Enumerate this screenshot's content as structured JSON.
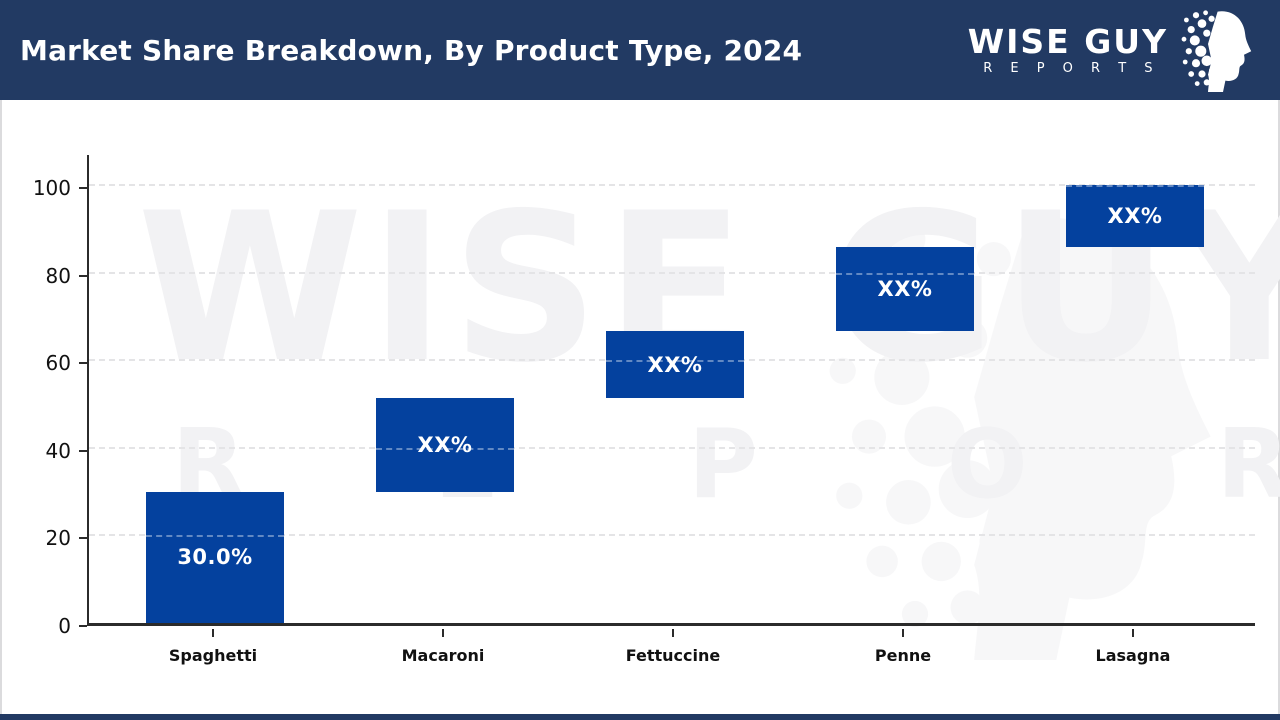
{
  "header": {
    "title": "Market Share Breakdown, By Product Type, 2024",
    "logo": {
      "line1": "WISE GUY",
      "line2": "R E P O R T S"
    }
  },
  "watermark": {
    "line1": "WISE GUY",
    "line2": "R E P O R T S"
  },
  "colors": {
    "header-bg": "#223A63",
    "footer-bg": "#223A63",
    "bar": "#04419E",
    "bar-label": "#FFFFFF",
    "grid": "#E4E4E6",
    "axis": "#2B2B2B",
    "tick-label": "#111111",
    "watermark": "#F2F2F4"
  },
  "chart_data": {
    "type": "bar",
    "subtype": "waterfall",
    "title": "Market Share Breakdown, By Product Type, 2024",
    "categories": [
      "Spaghetti",
      "Macaroni",
      "Fettuccine",
      "Penne",
      "Lasagna"
    ],
    "segments": [
      {
        "category": "Spaghetti",
        "start": 0,
        "end": 30,
        "value": 30.0,
        "label": "30.0%"
      },
      {
        "category": "Macaroni",
        "start": 30,
        "end": 51.4,
        "value": 21.4,
        "label": "XX%"
      },
      {
        "category": "Fettuccine",
        "start": 51.4,
        "end": 66.6,
        "value": 15.2,
        "label": "XX%"
      },
      {
        "category": "Penne",
        "start": 66.6,
        "end": 85.8,
        "value": 19.2,
        "label": "XX%"
      },
      {
        "category": "Lasagna",
        "start": 85.8,
        "end": 100,
        "value": 14.2,
        "label": "XX%"
      }
    ],
    "yticks": [
      0,
      20,
      40,
      60,
      80,
      100
    ],
    "ylim": [
      0,
      107.6
    ],
    "grid": "horizontal-dashed",
    "legend": "none",
    "xlabel": "",
    "ylabel": ""
  }
}
